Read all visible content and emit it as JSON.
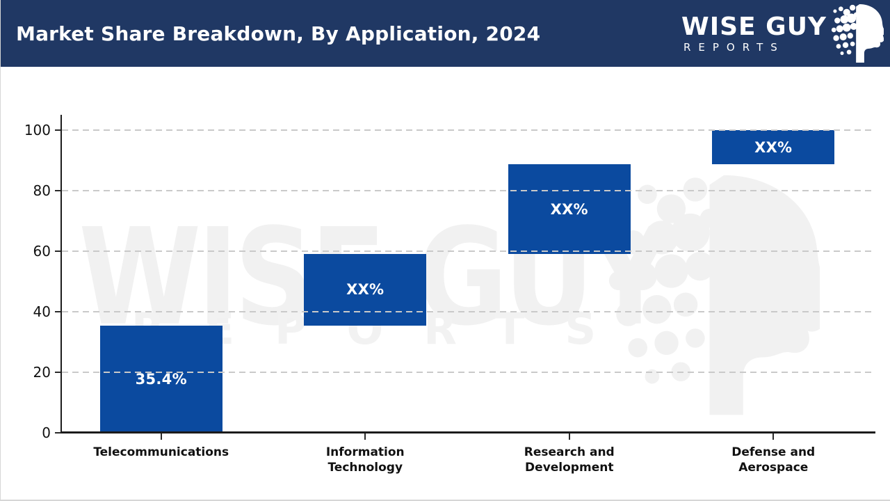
{
  "header": {
    "title": "Market Share Breakdown, By Application, 2024",
    "logo": {
      "line1": "WISE GUY",
      "line2": "REPORTS"
    }
  },
  "watermark": {
    "line1": "WISE GUY",
    "line2": "REPORTS"
  },
  "colors": {
    "header_bg": "#203864",
    "bar_fill": "#0b4a9f",
    "title_text": "#ffffff",
    "bar_label_text": "#ffffff",
    "axis_text": "#111111",
    "gridline": "#c9c9c9",
    "watermark": "#f1f1f1"
  },
  "chart_data": {
    "type": "bar",
    "subtype": "waterfall",
    "title": "Market Share Breakdown, By Application, 2024",
    "categories": [
      "Telecommunications",
      "Information\nTechnology",
      "Research and\nDevelopment",
      "Defense and\nAerospace"
    ],
    "segments": [
      {
        "category": "Telecommunications",
        "label": "35.4%",
        "start": 0,
        "end": 35.4
      },
      {
        "category": "Information Technology",
        "label": "XX%",
        "start": 35.4,
        "end": 59.1
      },
      {
        "category": "Research and Development",
        "label": "XX%",
        "start": 59.1,
        "end": 88.7
      },
      {
        "category": "Defense and Aerospace",
        "label": "XX%",
        "start": 88.7,
        "end": 100
      }
    ],
    "yticks": [
      0,
      20,
      40,
      60,
      80,
      100
    ],
    "ylim": [
      0,
      100
    ],
    "xlabel": "",
    "ylabel": "",
    "grid": true,
    "legend": false
  }
}
